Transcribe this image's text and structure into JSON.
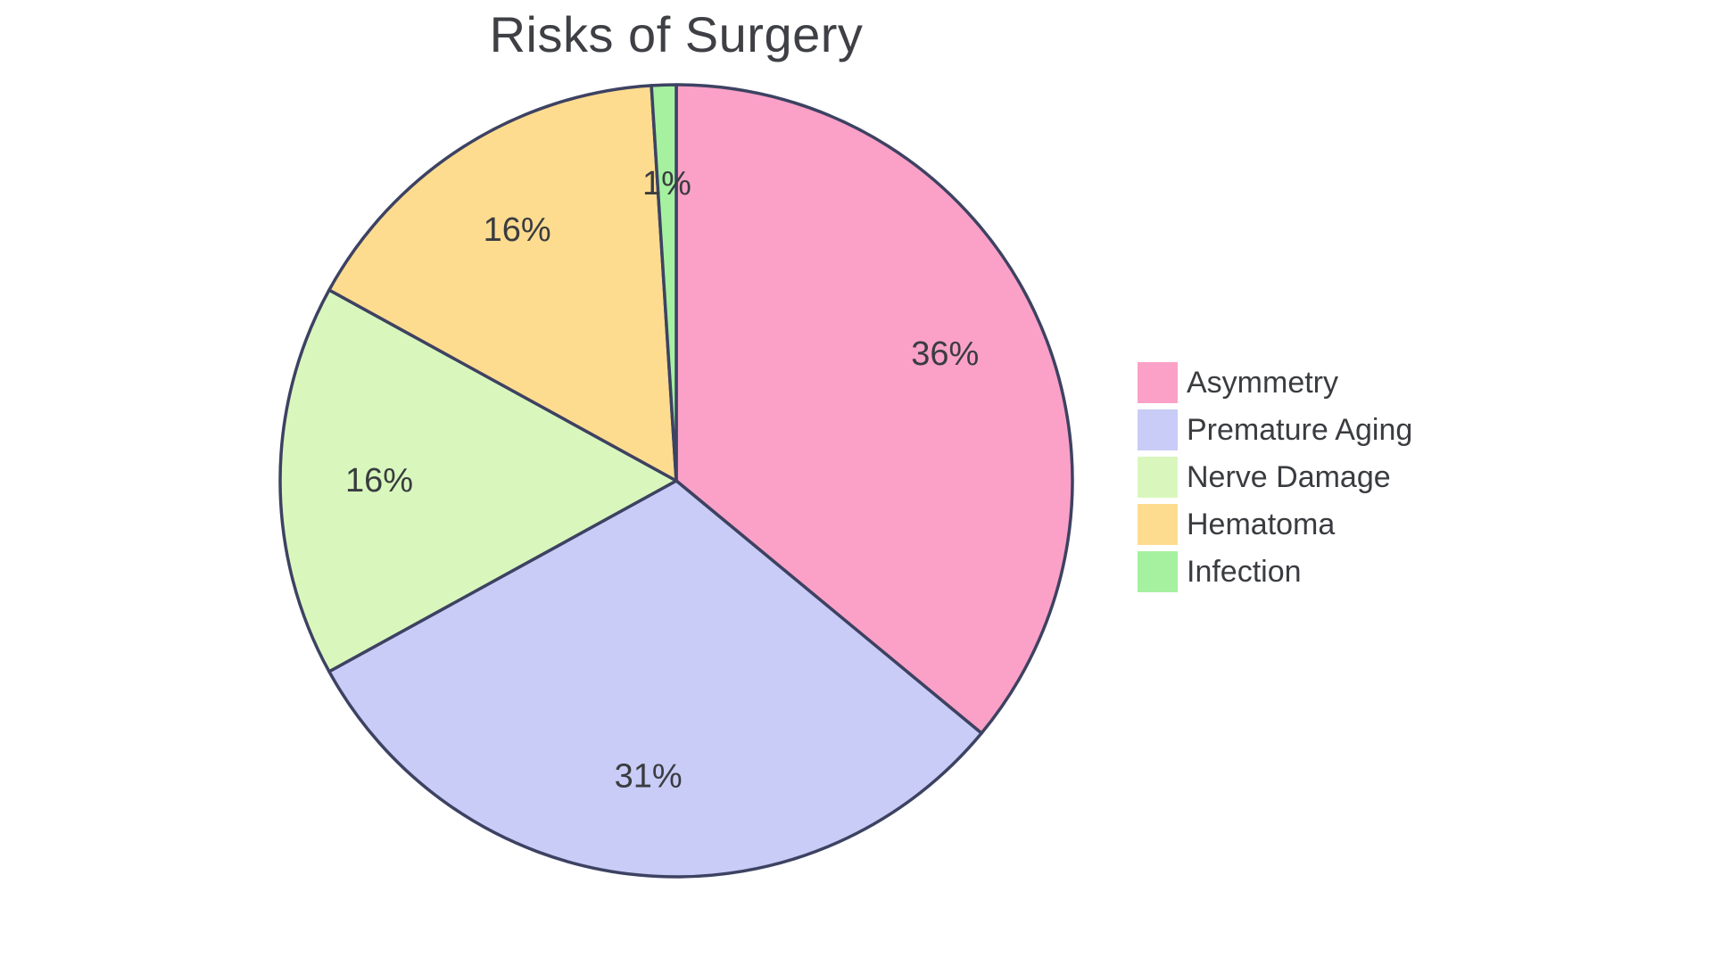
{
  "chart_data": {
    "type": "pie",
    "title": "Risks of Surgery",
    "labels": [
      "Asymmetry",
      "Premature Aging",
      "Nerve Damage",
      "Hematoma",
      "Infection"
    ],
    "values": [
      36,
      31,
      16,
      16,
      1
    ],
    "percent_labels": [
      "36%",
      "31%",
      "16%",
      "16%",
      "1%"
    ],
    "colors": [
      "#FBA1C7",
      "#C8CCF6",
      "#D9F7BD",
      "#FDDC90",
      "#A5F1A0"
    ],
    "slice_outline_color": "#3D4262",
    "label_text_color": "#3A3C40",
    "title_text_color": "#3F4045",
    "legend_position": "right",
    "start_angle": "12 o'clock",
    "direction": "clockwise",
    "legend": [
      "Asymmetry",
      "Premature Aging",
      "Nerve Damage",
      "Hematoma",
      "Infection"
    ]
  }
}
